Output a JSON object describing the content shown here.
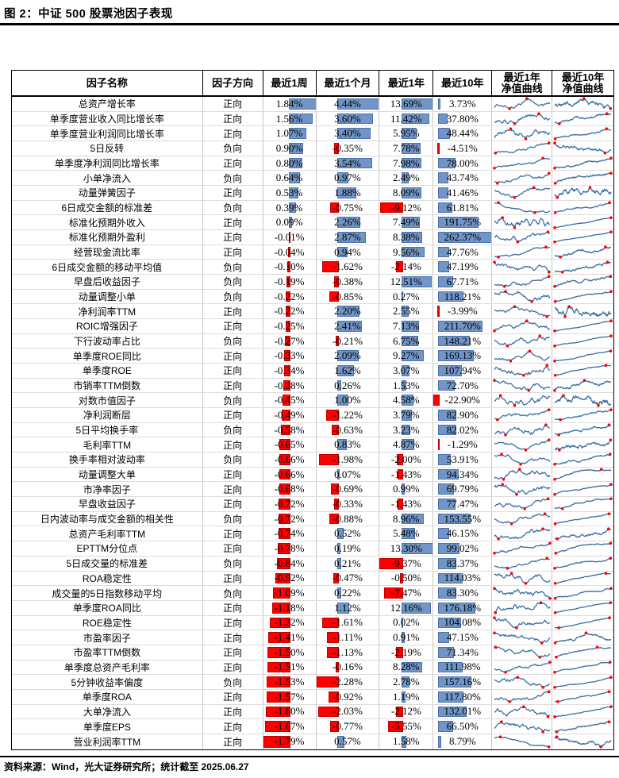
{
  "title": "图 2：中证 500 股票池因子表现",
  "source_note": "资料来源：Wind，光大证券研究所；统计截至 2025.06.27",
  "colors": {
    "positive_bar": "#7195C6",
    "positive_bar_border": "#4A72A8",
    "negative_bar": "#FF0000",
    "negative_bar_border": "#C00000",
    "sparkline": "#3A6EA5",
    "sparkline_marker": "#FF0000"
  },
  "table": {
    "headers": [
      "因子名称",
      "因子方向",
      "最近1周",
      "最近1个月",
      "最近1年",
      "最近10年",
      "最近1年\n净值曲线",
      "最近10年\n净值曲线"
    ],
    "rows": [
      {
        "name": "总资产增长率",
        "direction": "正向",
        "w1": 1.84,
        "m1": 4.44,
        "y1": 13.69,
        "y10": 3.73
      },
      {
        "name": "单季度营业收入同比增长率",
        "direction": "正向",
        "w1": 1.56,
        "m1": 3.6,
        "y1": 11.42,
        "y10": 37.8
      },
      {
        "name": "单季度营业利润同比增长率",
        "direction": "正向",
        "w1": 1.07,
        "m1": 3.4,
        "y1": 5.95,
        "y10": 48.44
      },
      {
        "name": "5日反转",
        "direction": "负向",
        "w1": 0.9,
        "m1": -0.35,
        "y1": 7.78,
        "y10": -4.51
      },
      {
        "name": "单季度净利润同比增长率",
        "direction": "正向",
        "w1": 0.8,
        "m1": 3.54,
        "y1": 7.98,
        "y10": 78.0
      },
      {
        "name": "小单净流入",
        "direction": "负向",
        "w1": 0.64,
        "m1": 0.97,
        "y1": 2.49,
        "y10": 43.74
      },
      {
        "name": "动量弹簧因子",
        "direction": "正向",
        "w1": 0.53,
        "m1": 1.88,
        "y1": 8.09,
        "y10": 41.46
      },
      {
        "name": "6日成交金额的标准差",
        "direction": "负向",
        "w1": 0.39,
        "m1": -0.75,
        "y1": -9.12,
        "y10": 61.81
      },
      {
        "name": "标准化预期外收入",
        "direction": "正向",
        "w1": 0.09,
        "m1": 2.26,
        "y1": 7.49,
        "y10": 191.75
      },
      {
        "name": "标准化预期外盈利",
        "direction": "正向",
        "w1": -0.01,
        "m1": 2.87,
        "y1": 8.38,
        "y10": 262.37
      },
      {
        "name": "经营现金流比率",
        "direction": "正向",
        "w1": -0.04,
        "m1": 0.94,
        "y1": 9.56,
        "y10": 47.76
      },
      {
        "name": "6日成交金额的移动平均值",
        "direction": "负向",
        "w1": -0.1,
        "m1": -1.62,
        "y1": -2.14,
        "y10": 47.19
      },
      {
        "name": "早盘后收益因子",
        "direction": "负向",
        "w1": -0.19,
        "m1": -0.38,
        "y1": 12.51,
        "y10": 67.71
      },
      {
        "name": "动量调整小单",
        "direction": "负向",
        "w1": -0.22,
        "m1": -0.85,
        "y1": 0.27,
        "y10": 118.21
      },
      {
        "name": "净利润率TTM",
        "direction": "正向",
        "w1": -0.22,
        "m1": 2.2,
        "y1": 2.55,
        "y10": -3.99
      },
      {
        "name": "ROIC增强因子",
        "direction": "正向",
        "w1": -0.25,
        "m1": 2.41,
        "y1": 7.13,
        "y10": 211.7
      },
      {
        "name": "下行波动率占比",
        "direction": "负向",
        "w1": -0.27,
        "m1": -0.21,
        "y1": 6.75,
        "y10": 148.21
      },
      {
        "name": "单季度ROE同比",
        "direction": "正向",
        "w1": -0.33,
        "m1": 2.09,
        "y1": 9.27,
        "y10": 169.13
      },
      {
        "name": "单季度ROE",
        "direction": "正向",
        "w1": -0.34,
        "m1": 1.62,
        "y1": 3.07,
        "y10": 107.94
      },
      {
        "name": "市销率TTM倒数",
        "direction": "正向",
        "w1": -0.38,
        "m1": 0.26,
        "y1": 1.53,
        "y10": 72.7
      },
      {
        "name": "对数市值因子",
        "direction": "负向",
        "w1": -0.45,
        "m1": 1.0,
        "y1": 4.58,
        "y10": -22.9
      },
      {
        "name": "净利润断层",
        "direction": "正向",
        "w1": -0.49,
        "m1": -1.22,
        "y1": 3.79,
        "y10": 82.9
      },
      {
        "name": "5日平均换手率",
        "direction": "负向",
        "w1": -0.58,
        "m1": -0.63,
        "y1": 3.23,
        "y10": 82.02
      },
      {
        "name": "毛利率TTM",
        "direction": "正向",
        "w1": -0.65,
        "m1": 0.83,
        "y1": 4.87,
        "y10": -1.29
      },
      {
        "name": "换手率相对波动率",
        "direction": "负向",
        "w1": -0.66,
        "m1": -1.98,
        "y1": -2.0,
        "y10": 53.91
      },
      {
        "name": "动量调整大单",
        "direction": "正向",
        "w1": -0.66,
        "m1": 0.07,
        "y1": -1.43,
        "y10": 94.34
      },
      {
        "name": "市净率因子",
        "direction": "正向",
        "w1": -0.68,
        "m1": -0.69,
        "y1": 0.99,
        "y10": 69.79
      },
      {
        "name": "早盘收益因子",
        "direction": "正向",
        "w1": -0.72,
        "m1": -0.33,
        "y1": -1.43,
        "y10": 77.47
      },
      {
        "name": "日内波动率与成交金额的相关性",
        "direction": "负向",
        "w1": -0.72,
        "m1": -0.88,
        "y1": 8.96,
        "y10": 153.55
      },
      {
        "name": "总资产毛利率TTM",
        "direction": "正向",
        "w1": -0.74,
        "m1": 0.52,
        "y1": 5.48,
        "y10": 46.15
      },
      {
        "name": "EPTTM分位点",
        "direction": "正向",
        "w1": -0.78,
        "m1": 0.19,
        "y1": 13.3,
        "y10": 99.02
      },
      {
        "name": "5日成交量的标准差",
        "direction": "负向",
        "w1": -0.84,
        "m1": 0.21,
        "y1": -9.37,
        "y10": 83.37
      },
      {
        "name": "ROA稳定性",
        "direction": "正向",
        "w1": -0.92,
        "m1": -0.47,
        "y1": -0.5,
        "y10": 114.03
      },
      {
        "name": "成交量的5日指数移动平均",
        "direction": "负向",
        "w1": -1.09,
        "m1": 0.22,
        "y1": -7.47,
        "y10": 83.3
      },
      {
        "name": "单季度ROA同比",
        "direction": "正向",
        "w1": -1.18,
        "m1": 1.12,
        "y1": 12.16,
        "y10": 176.18
      },
      {
        "name": "ROE稳定性",
        "direction": "正向",
        "w1": -1.32,
        "m1": -1.61,
        "y1": 0.02,
        "y10": 104.08
      },
      {
        "name": "市盈率因子",
        "direction": "正向",
        "w1": -1.41,
        "m1": -1.11,
        "y1": 0.91,
        "y10": 47.15
      },
      {
        "name": "市盈率TTM倒数",
        "direction": "正向",
        "w1": -1.5,
        "m1": -1.13,
        "y1": -2.19,
        "y10": 71.34
      },
      {
        "name": "单季度总资产毛利率",
        "direction": "正向",
        "w1": -1.51,
        "m1": -0.16,
        "y1": 8.28,
        "y10": 111.98
      },
      {
        "name": "5分钟收益率偏度",
        "direction": "负向",
        "w1": -1.53,
        "m1": -2.28,
        "y1": 2.78,
        "y10": 157.16
      },
      {
        "name": "单季度ROA",
        "direction": "正向",
        "w1": -1.57,
        "m1": -0.92,
        "y1": 1.19,
        "y10": 117.8
      },
      {
        "name": "大单净流入",
        "direction": "正向",
        "w1": -1.6,
        "m1": -2.03,
        "y1": -2.12,
        "y10": 132.01
      },
      {
        "name": "单季度EPS",
        "direction": "正向",
        "w1": -1.67,
        "m1": -0.77,
        "y1": -5.55,
        "y10": 66.5
      },
      {
        "name": "营业利润率TTM",
        "direction": "正向",
        "w1": -1.79,
        "m1": 0.57,
        "y1": 1.58,
        "y10": 8.79
      }
    ]
  }
}
